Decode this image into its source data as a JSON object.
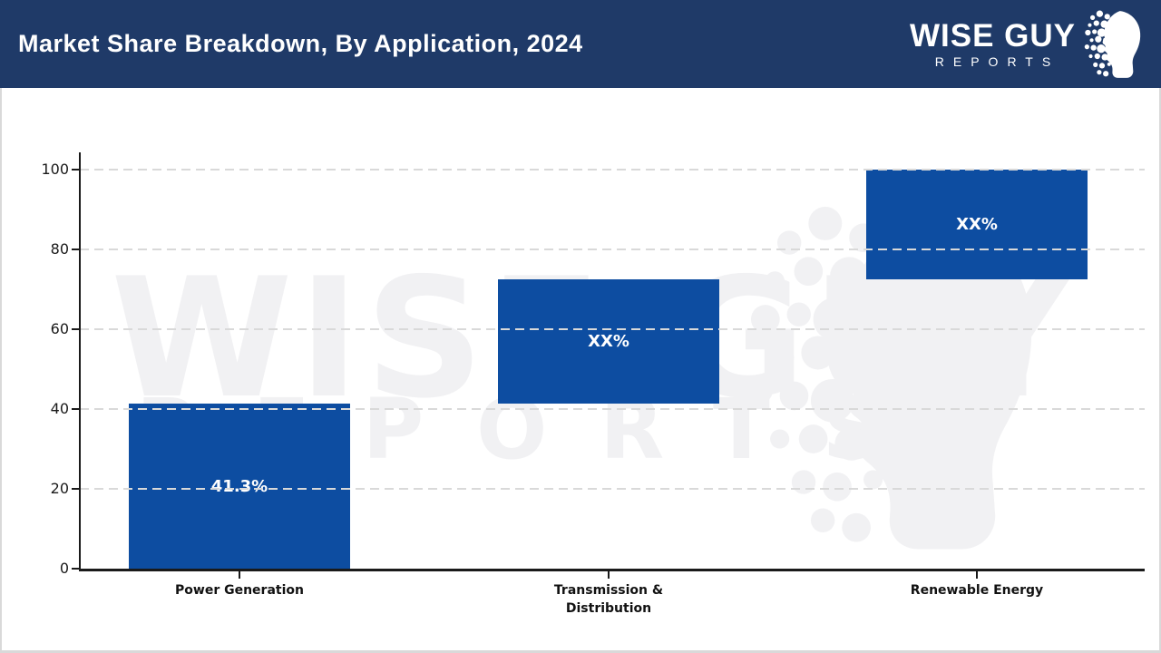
{
  "header": {
    "title": "Market Share Breakdown, By Application, 2024",
    "logo": {
      "name": "WISE GUY",
      "sub": "REPORTS"
    }
  },
  "watermark": {
    "name": "WISE GUY",
    "sub": "REPORTS"
  },
  "chart_data": {
    "type": "bar",
    "variant": "floating_segment_bars",
    "title": "Market Share Breakdown, By Application, 2024",
    "categories": [
      "Power Generation",
      "Transmission & Distribution",
      "Renewable Energy"
    ],
    "segments": [
      {
        "category": "Power Generation",
        "start": 0,
        "end": 41.3,
        "label": "41.3%"
      },
      {
        "category": "Transmission & Distribution",
        "start": 41.3,
        "end": 72.5,
        "label": "XX%"
      },
      {
        "category": "Renewable Energy",
        "start": 72.5,
        "end": 100,
        "label": "XX%"
      }
    ],
    "ylim": [
      0,
      100
    ],
    "yticks": [
      0,
      20,
      40,
      60,
      80,
      100
    ],
    "grid": "dashed horizontal, drawn above bars",
    "legend": false,
    "xlabel": "",
    "ylabel": ""
  },
  "colors": {
    "header_bg": "#1f3a68",
    "bar": "#0d4da1",
    "bar_label": "#ffffff",
    "grid": "#d9d9d9",
    "axis": "#1a1a1a",
    "watermark": "#f1f1f3"
  }
}
